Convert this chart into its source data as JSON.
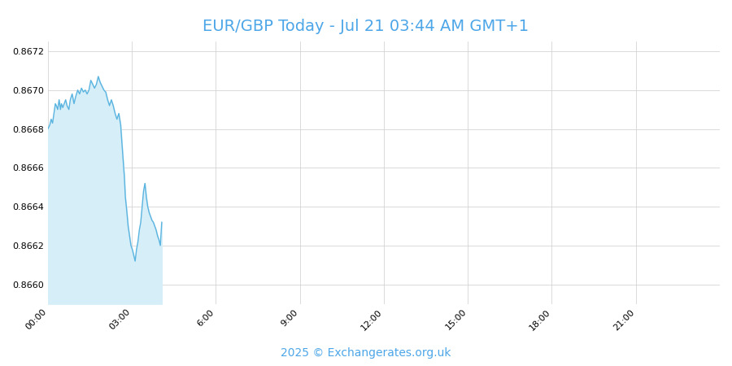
{
  "title": "EUR/GBP Today - Jul 21 03:44 AM GMT+1",
  "title_color": "#4da6e8",
  "title_fontsize": 14,
  "footer": "2025 © Exchangerates.org.uk",
  "footer_color": "#4da6e8",
  "footer_fontsize": 10,
  "line_color": "#5ab4e0",
  "fill_color": "#d6eef8",
  "background_color": "#ffffff",
  "grid_color": "#cccccc",
  "ylim": [
    0.8659,
    0.86725
  ],
  "yticks": [
    0.866,
    0.8662,
    0.8664,
    0.8666,
    0.8668,
    0.867,
    0.8672
  ],
  "xticks": [
    0,
    180,
    360,
    540,
    720,
    900,
    1080,
    1260
  ],
  "xticklabels": [
    "00:00",
    "03:00",
    "6:00",
    "9:00",
    "12:00",
    "15:00",
    "18:00",
    "21:00"
  ],
  "xlim": [
    0,
    1440
  ],
  "x_data": [
    0,
    4,
    7,
    10,
    13,
    16,
    18,
    21,
    24,
    27,
    29,
    32,
    35,
    38,
    41,
    45,
    48,
    52,
    56,
    60,
    64,
    68,
    72,
    76,
    80,
    84,
    88,
    92,
    96,
    100,
    104,
    108,
    112,
    116,
    120,
    124,
    128,
    132,
    136,
    140,
    144,
    148,
    152,
    156,
    158,
    161,
    164,
    166,
    169,
    172,
    175,
    178,
    181,
    184,
    187,
    190,
    193,
    196,
    199,
    202,
    205,
    208,
    211,
    214,
    217,
    220,
    223,
    226,
    229,
    232,
    235,
    238,
    241,
    244
  ],
  "y_data": [
    0.8668,
    0.86682,
    0.86685,
    0.86683,
    0.86688,
    0.86693,
    0.86692,
    0.8669,
    0.86695,
    0.8669,
    0.86693,
    0.86691,
    0.86693,
    0.86695,
    0.86692,
    0.8669,
    0.86695,
    0.86698,
    0.86693,
    0.86697,
    0.867,
    0.86698,
    0.86701,
    0.86699,
    0.867,
    0.86698,
    0.867,
    0.86705,
    0.86703,
    0.86701,
    0.86703,
    0.86707,
    0.86704,
    0.86702,
    0.867,
    0.86699,
    0.86695,
    0.86692,
    0.86695,
    0.86692,
    0.86688,
    0.86685,
    0.86688,
    0.86682,
    0.86675,
    0.86665,
    0.86655,
    0.86645,
    0.86638,
    0.8663,
    0.86625,
    0.8662,
    0.86618,
    0.86615,
    0.86612,
    0.86618,
    0.86622,
    0.86628,
    0.86632,
    0.8664,
    0.86648,
    0.86652,
    0.86645,
    0.8664,
    0.86637,
    0.86635,
    0.86633,
    0.86632,
    0.8663,
    0.86628,
    0.86625,
    0.86623,
    0.8662,
    0.86632
  ]
}
